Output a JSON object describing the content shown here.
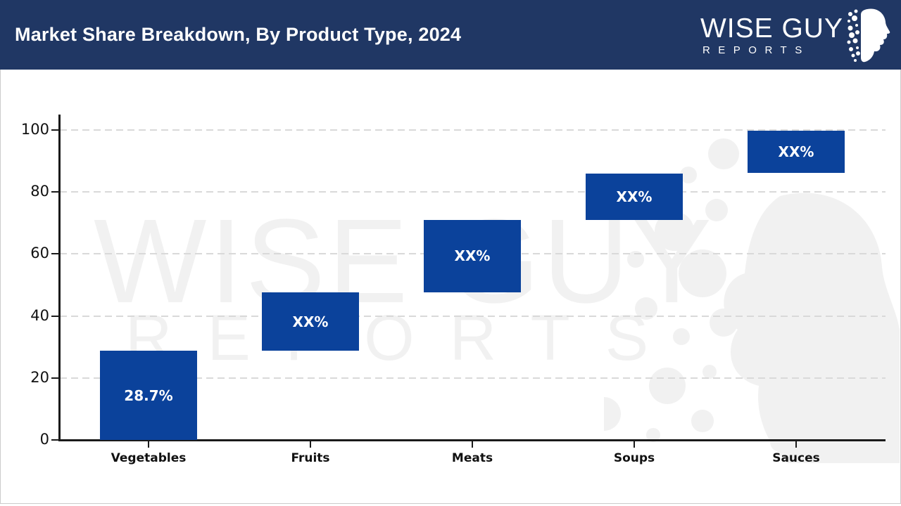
{
  "header": {
    "title": "Market Share Breakdown, By Product Type, 2024",
    "bg_color": "#203764",
    "logo": {
      "line1": "WISE GUY",
      "line2": "REPORTS"
    }
  },
  "watermark": {
    "line1": "WISE GUY",
    "line2": "REPORTS"
  },
  "chart_data": {
    "type": "bar",
    "subtype": "waterfall",
    "title": "Market Share Breakdown, By Product Type, 2024",
    "xlabel": "",
    "ylabel": "",
    "categories": [
      "Vegetables",
      "Fruits",
      "Meats",
      "Soups",
      "Sauces"
    ],
    "segments": [
      {
        "category": "Vegetables",
        "start": 0,
        "end": 28.7,
        "label": "28.7%"
      },
      {
        "category": "Fruits",
        "start": 28.7,
        "end": 47.7,
        "label": "XX%"
      },
      {
        "category": "Meats",
        "start": 47.7,
        "end": 70.9,
        "label": "XX%"
      },
      {
        "category": "Soups",
        "start": 70.9,
        "end": 85.9,
        "label": "XX%"
      },
      {
        "category": "Sauces",
        "start": 86.1,
        "end": 99.8,
        "label": "XX%"
      }
    ],
    "y_ticks": [
      0,
      20,
      40,
      60,
      80,
      100
    ],
    "ylim": [
      0,
      105
    ],
    "grid": "dashed-horizontal",
    "legend": "none",
    "bar_color": "#0b429b",
    "bar_label_color": "#ffffff",
    "axis_color": "#1a1a1a",
    "grid_color": "#d9d9d9"
  }
}
